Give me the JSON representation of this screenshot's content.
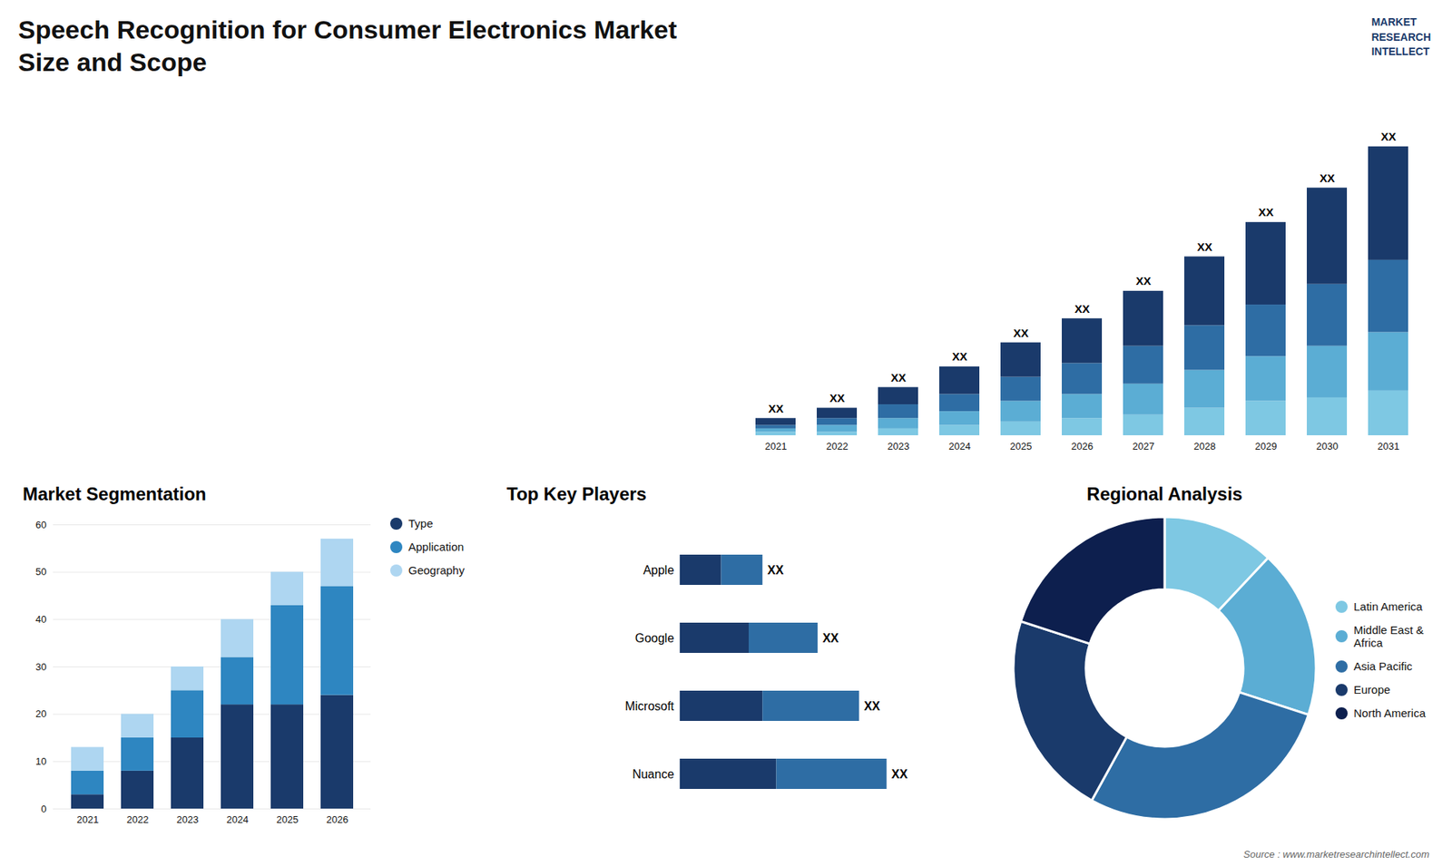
{
  "chart_data": [
    {
      "type": "bar",
      "title": "Speech Recognition for Consumer Electronics Market Size and Scope",
      "stacked": true,
      "categories": [
        "2021",
        "2022",
        "2023",
        "2024",
        "2025",
        "2026",
        "2027",
        "2028",
        "2029",
        "2030",
        "2031"
      ],
      "series": [
        {
          "color": "#7ec8e3",
          "values": [
            1,
            1,
            2,
            3,
            4,
            5,
            6,
            8,
            10,
            11,
            13
          ]
        },
        {
          "color": "#5badd4",
          "values": [
            1,
            2,
            3,
            4,
            6,
            7,
            9,
            11,
            13,
            15,
            17
          ]
        },
        {
          "color": "#2e6da4",
          "values": [
            1,
            2,
            4,
            5,
            7,
            9,
            11,
            13,
            15,
            18,
            21
          ]
        },
        {
          "color": "#1a3a6b",
          "values": [
            2,
            3,
            5,
            8,
            10,
            13,
            16,
            20,
            24,
            28,
            33
          ]
        }
      ],
      "value_labels": [
        "XX",
        "XX",
        "XX",
        "XX",
        "XX",
        "XX",
        "XX",
        "XX",
        "XX",
        "XX",
        "XX"
      ],
      "ylim": [
        0,
        98
      ],
      "tick_labels": "x",
      "annotations": [
        "MARKET\nRESEARCH\nINTELLECT"
      ]
    },
    {
      "type": "bar",
      "title": "Market Segmentation",
      "stacked": true,
      "categories": [
        "2021",
        "2022",
        "2023",
        "2024",
        "2025",
        "2026"
      ],
      "series": [
        {
          "name": "Type",
          "color": "#1a3a6b",
          "values": [
            3,
            8,
            15,
            22,
            22,
            24
          ]
        },
        {
          "name": "Application",
          "color": "#2e86c1",
          "values": [
            5,
            7,
            10,
            10,
            21,
            23
          ]
        },
        {
          "name": "Geography",
          "color": "#aed6f1",
          "values": [
            5,
            5,
            5,
            8,
            7,
            10
          ]
        }
      ],
      "ylim": [
        0,
        60
      ],
      "yticks": [
        0,
        10,
        20,
        30,
        40,
        50,
        60
      ],
      "grid": true,
      "legend": "right"
    },
    {
      "type": "bar",
      "title": "Top Key Players",
      "orientation": "horizontal",
      "stacked": true,
      "categories": [
        "Nuance",
        "Microsoft",
        "Google",
        "Apple"
      ],
      "series": [
        {
          "color": "#1a3a6b",
          "values": [
            7,
            6,
            5,
            3
          ]
        },
        {
          "color": "#2e6da4",
          "values": [
            8,
            7,
            5,
            3
          ]
        }
      ],
      "value_labels": [
        "XX",
        "XX",
        "XX",
        "XX"
      ],
      "xlim": [
        -12,
        22
      ],
      "tick_labels": false
    },
    {
      "type": "donut",
      "title": "Regional Analysis",
      "values": [
        12,
        18,
        28,
        22,
        20
      ],
      "labels": [
        "Latin America",
        "Middle East &\nAfrica",
        "Asia Pacific",
        "Europe",
        "North America"
      ],
      "colors": [
        "#7ec8e3",
        "#5badd4",
        "#2e6da4",
        "#1a3a6b",
        "#0d1f4e"
      ],
      "legend": "right",
      "annotations": [
        "Source : www.marketresearchintellect.com"
      ]
    }
  ]
}
